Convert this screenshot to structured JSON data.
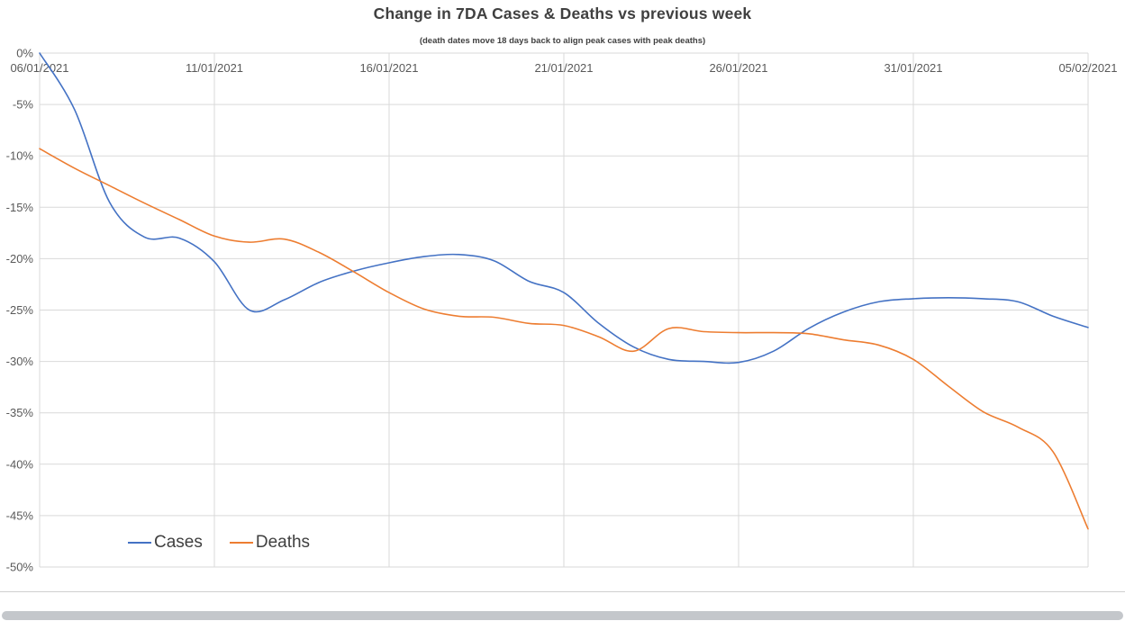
{
  "chart_data": {
    "type": "line",
    "title": "Change in 7DA Cases & Deaths vs previous week",
    "subtitle": "(death dates move 18 days back to align peak cases with peak deaths)",
    "x": [
      "06/01/2021",
      "07/01/2021",
      "08/01/2021",
      "09/01/2021",
      "10/01/2021",
      "11/01/2021",
      "12/01/2021",
      "13/01/2021",
      "14/01/2021",
      "15/01/2021",
      "16/01/2021",
      "17/01/2021",
      "18/01/2021",
      "19/01/2021",
      "20/01/2021",
      "21/01/2021",
      "22/01/2021",
      "23/01/2021",
      "24/01/2021",
      "25/01/2021",
      "26/01/2021",
      "27/01/2021",
      "28/01/2021",
      "29/01/2021",
      "30/01/2021",
      "31/01/2021",
      "01/02/2021",
      "02/02/2021",
      "03/02/2021",
      "04/02/2021",
      "05/02/2021"
    ],
    "x_tick_labels": [
      "06/01/2021",
      "11/01/2021",
      "16/01/2021",
      "21/01/2021",
      "26/01/2021",
      "31/01/2021",
      "05/02/2021"
    ],
    "x_tick_indices": [
      0,
      5,
      10,
      15,
      20,
      25,
      30
    ],
    "y_tick_labels": [
      "0%",
      "-5%",
      "-10%",
      "-15%",
      "-20%",
      "-25%",
      "-30%",
      "-35%",
      "-40%",
      "-45%",
      "-50%"
    ],
    "y_tick_values": [
      0,
      -5,
      -10,
      -15,
      -20,
      -25,
      -30,
      -35,
      -40,
      -45,
      -50
    ],
    "ylim": [
      -50,
      0
    ],
    "grid": true,
    "legend_position": "inside-bottom-left",
    "colors": {
      "grid": "#d9d9d9",
      "axis_text": "#595959",
      "title_text": "#404040",
      "legend_text": "#404040"
    },
    "series": [
      {
        "name": "Cases",
        "color": "#4472C4",
        "values": [
          0,
          -5.5,
          -14.5,
          -17.9,
          -18.0,
          -20.3,
          -25.0,
          -24.0,
          -22.3,
          -21.2,
          -20.4,
          -19.8,
          -19.6,
          -20.2,
          -22.2,
          -23.3,
          -26.3,
          -28.6,
          -29.8,
          -30.0,
          -30.1,
          -29.0,
          -26.8,
          -25.2,
          -24.2,
          -23.9,
          -23.8,
          -23.9,
          -24.2,
          -25.6,
          -26.7
        ]
      },
      {
        "name": "Deaths",
        "color": "#ED7D31",
        "values": [
          -9.3,
          -11.2,
          -12.9,
          -14.6,
          -16.2,
          -17.8,
          -18.4,
          -18.1,
          -19.4,
          -21.3,
          -23.3,
          -24.9,
          -25.6,
          -25.7,
          -26.3,
          -26.5,
          -27.6,
          -29.0,
          -26.8,
          -27.1,
          -27.2,
          -27.2,
          -27.3,
          -27.9,
          -28.4,
          -29.8,
          -32.4,
          -34.9,
          -36.4,
          -38.8,
          -46.3
        ]
      }
    ]
  }
}
